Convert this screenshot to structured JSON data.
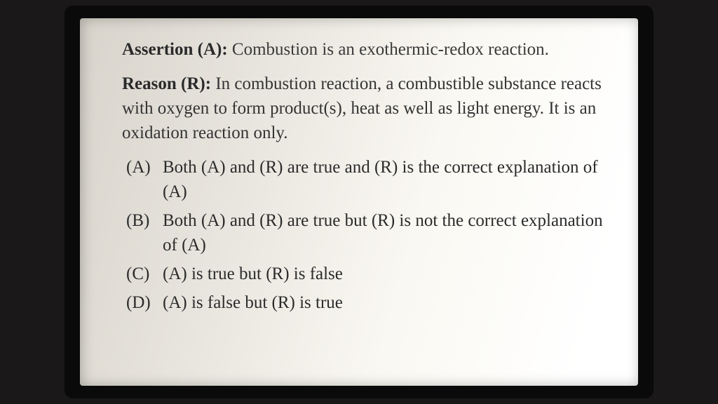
{
  "assertion": {
    "label": "Assertion (A):",
    "text": " Combustion is an exothermic-redox reaction."
  },
  "reason": {
    "label": "Reason (R):",
    "text": " In combustion reaction, a combustible substance reacts with oxygen to form product(s), heat as well as light energy. It is an oxidation reaction only."
  },
  "options": [
    {
      "letter": "(A)",
      "text": "Both (A) and (R) are true and (R) is the correct explanation of (A)"
    },
    {
      "letter": "(B)",
      "text": "Both (A) and (R) are true but (R) is not the correct explanation of (A)"
    },
    {
      "letter": "(C)",
      "text": "(A) is true but (R) is false"
    },
    {
      "letter": "(D)",
      "text": "(A) is false but (R) is true"
    }
  ],
  "styling": {
    "page_bg": "#1a1818",
    "frame_bg": "#0a0a0a",
    "screen_gradient_start": "#d8d4cc",
    "screen_gradient_end": "#ffffff",
    "text_color": "#2a2a2a",
    "font_family": "Times New Roman",
    "body_fontsize_pt": 19,
    "label_weight": "bold"
  }
}
